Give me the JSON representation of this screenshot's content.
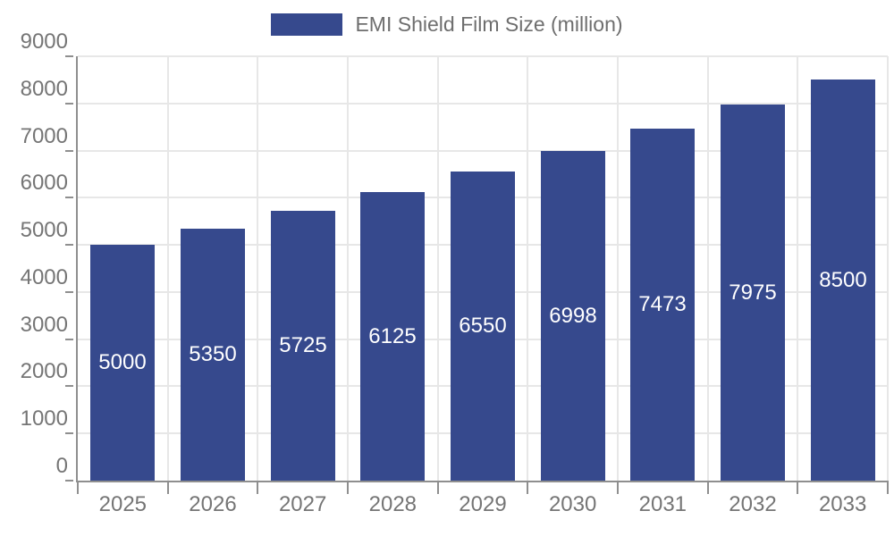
{
  "legend": {
    "label": "EMI Shield Film Size (million)"
  },
  "chart_data": {
    "type": "bar",
    "title": "EMI Shield Film Size (million)",
    "categories": [
      "2025",
      "2026",
      "2027",
      "2028",
      "2029",
      "2030",
      "2031",
      "2032",
      "2033"
    ],
    "values": [
      5000,
      5350,
      5725,
      6125,
      6550,
      6998,
      7473,
      7975,
      8500
    ],
    "series_name": "EMI Shield Film Size (million)",
    "xlabel": "",
    "ylabel": "",
    "ylim": [
      0,
      9000
    ],
    "ytick_interval": 1000,
    "ytick_labels": [
      "0",
      "1000",
      "2000",
      "3000",
      "4000",
      "5000",
      "6000",
      "7000",
      "8000",
      "9000"
    ],
    "grid": true,
    "legend_position": "top-center",
    "value_labels": "inside-center",
    "colors": {
      "bar": "#36498d",
      "value_label": "#ffffff",
      "axis_label": "#757575",
      "legend_label": "#6e6e6e",
      "gridline": "#e7e7e7",
      "axis_line": "#8f8f8f",
      "background": "#ffffff"
    }
  }
}
